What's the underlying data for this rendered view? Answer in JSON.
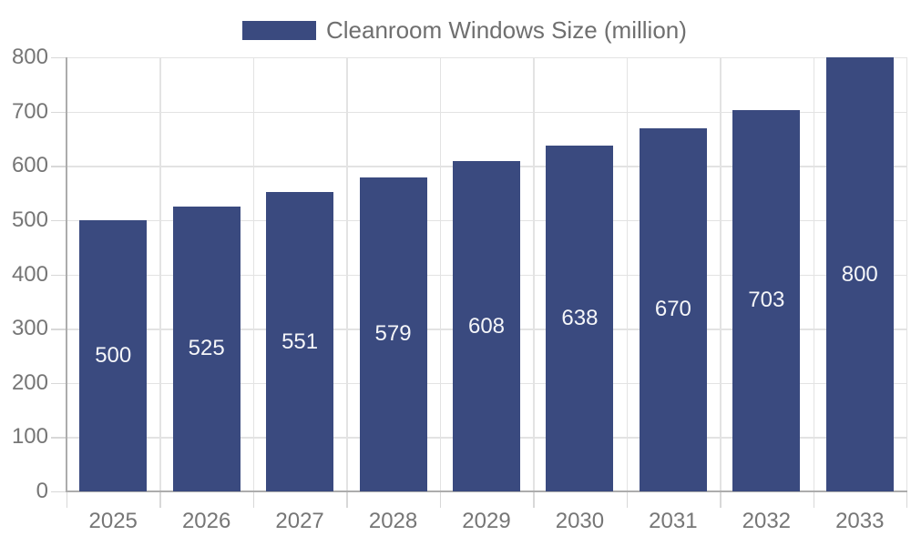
{
  "legend": {
    "label": "Cleanroom Windows Size (million)"
  },
  "chart_data": {
    "type": "bar",
    "title": "",
    "legend": "Cleanroom Windows Size (million)",
    "legend_position": "top",
    "categories": [
      "2025",
      "2026",
      "2027",
      "2028",
      "2029",
      "2030",
      "2031",
      "2032",
      "2033"
    ],
    "values": [
      500,
      525,
      551,
      579,
      608,
      638,
      670,
      703,
      800
    ],
    "value_labels": [
      "500",
      "525",
      "551",
      "579",
      "608",
      "638",
      "670",
      "703",
      "800"
    ],
    "xlabel": "",
    "ylabel": "",
    "ylim": [
      0,
      800
    ],
    "yticks": [
      0,
      100,
      200,
      300,
      400,
      500,
      600,
      700,
      800
    ],
    "grid": true,
    "colors": {
      "bar": "#3a4a7f",
      "grid": "#e3e3e3",
      "axis": "#acacac",
      "tick": "#d8d8d8",
      "tick_label": "#767676",
      "legend_text": "#6f6f6f",
      "value_label": "#f5f6f9",
      "background": "#ffffff"
    }
  }
}
